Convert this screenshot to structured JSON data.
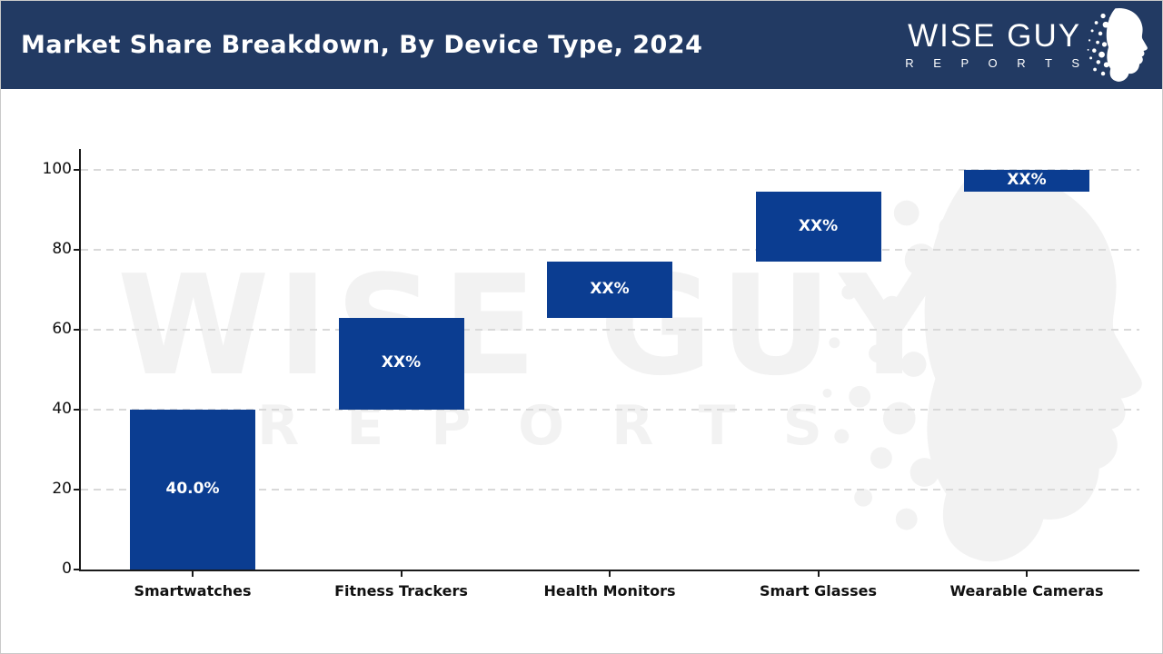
{
  "header": {
    "title": "Market Share Breakdown, By Device Type, 2024",
    "bg_color": "#223a63",
    "text_color": "#ffffff",
    "logo": {
      "line1": "WISE GUY",
      "line2": "R E P O R T S"
    }
  },
  "watermark": {
    "line1": "WISE GUY",
    "line2": "REPORTS",
    "color": "#f2f2f2"
  },
  "chart_data": {
    "type": "bar",
    "subtype": "waterfall",
    "title": "Market Share Breakdown, By Device Type, 2024",
    "xlabel": "",
    "ylabel": "",
    "categories": [
      "Smartwatches",
      "Fitness Trackers",
      "Health Monitors",
      "Smart Glasses",
      "Wearable Cameras"
    ],
    "segments": [
      {
        "category": "Smartwatches",
        "start": 0,
        "end": 40,
        "label": "40.0%"
      },
      {
        "category": "Fitness Trackers",
        "start": 40,
        "end": 63,
        "label": "XX%"
      },
      {
        "category": "Health Monitors",
        "start": 63,
        "end": 77,
        "label": "XX%"
      },
      {
        "category": "Smart Glasses",
        "start": 77,
        "end": 94.5,
        "label": "XX%"
      },
      {
        "category": "Wearable Cameras",
        "start": 94.5,
        "end": 100,
        "label": "XX%"
      }
    ],
    "ylim": [
      0,
      105
    ],
    "yticks": [
      0,
      20,
      40,
      60,
      80,
      100
    ],
    "grid": "horizontal dashed",
    "legend": "none",
    "bar_color": "#0b3d91",
    "bar_label_color": "#ffffff",
    "axis_color": "#1a1a1a",
    "gridline_color": "#d9d9d9"
  }
}
